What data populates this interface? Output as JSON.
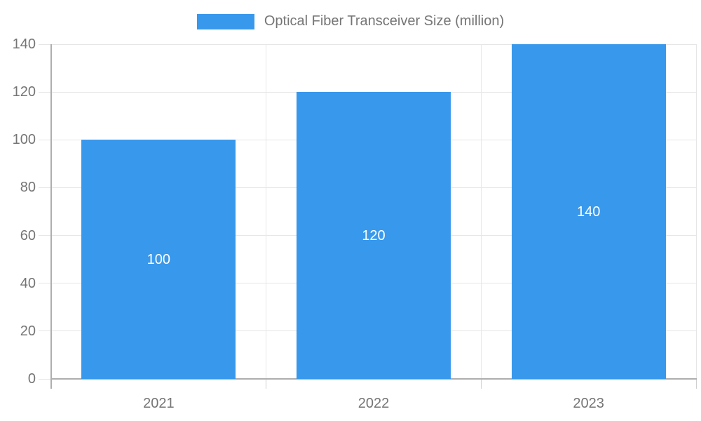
{
  "legend": {
    "label": "Optical Fiber Transceiver Size (million)"
  },
  "chart_data": {
    "type": "bar",
    "title": "",
    "series_name": "Optical Fiber Transceiver Size (million)",
    "categories": [
      "2021",
      "2022",
      "2023"
    ],
    "values": [
      100,
      120,
      140
    ],
    "bar_value_labels": [
      "100",
      "120",
      "140"
    ],
    "xlabel": "",
    "ylabel": "",
    "ylim": [
      0,
      140
    ],
    "yticks": [
      0,
      20,
      40,
      60,
      80,
      100,
      120,
      140
    ],
    "grid": true,
    "legend_position": "top",
    "colors": {
      "bar": "#3898ec",
      "bar_value_label": "#ffffff",
      "axis_line": "#aeaeae",
      "gridline": "#e6e6e6",
      "tick_label": "#757575",
      "legend_text": "#757575"
    }
  }
}
